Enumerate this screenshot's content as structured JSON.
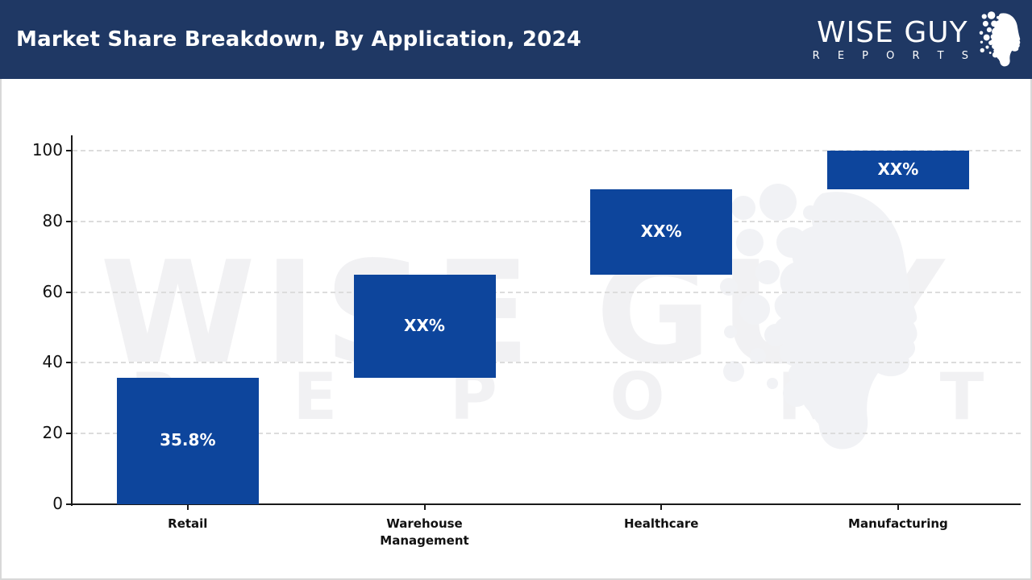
{
  "header": {
    "title": "Market Share Breakdown, By Application, 2024"
  },
  "logo": {
    "name_line": "WISE GUY",
    "reports_line": "R E P O R T S"
  },
  "watermark": {
    "line1": "WISE GUY",
    "line2": "R E P O R T S"
  },
  "chart_data": {
    "type": "bar",
    "subtype": "waterfall",
    "title": "Market Share Breakdown, By Application, 2024",
    "xlabel": "",
    "ylabel": "",
    "ylim": [
      0,
      100
    ],
    "yticks": [
      0,
      20,
      40,
      60,
      80,
      100
    ],
    "grid": "horizontal-dashed",
    "legend": "none",
    "bar_color": "#0d459c",
    "bar_label_color": "#ffffff",
    "categories": [
      "Retail",
      "Warehouse Management",
      "Healthcare",
      "Manufacturing"
    ],
    "segments": [
      {
        "category": "Retail",
        "category_lines": [
          "Retail"
        ],
        "start": 0,
        "end": 35.8,
        "label": "35.8%"
      },
      {
        "category": "Warehouse Management",
        "category_lines": [
          "Warehouse",
          "Management"
        ],
        "start": 35.8,
        "end": 65,
        "label": "XX%"
      },
      {
        "category": "Healthcare",
        "category_lines": [
          "Healthcare"
        ],
        "start": 65,
        "end": 89,
        "label": "XX%"
      },
      {
        "category": "Manufacturing",
        "category_lines": [
          "Manufacturing"
        ],
        "start": 89,
        "end": 100,
        "label": "XX%"
      }
    ]
  }
}
